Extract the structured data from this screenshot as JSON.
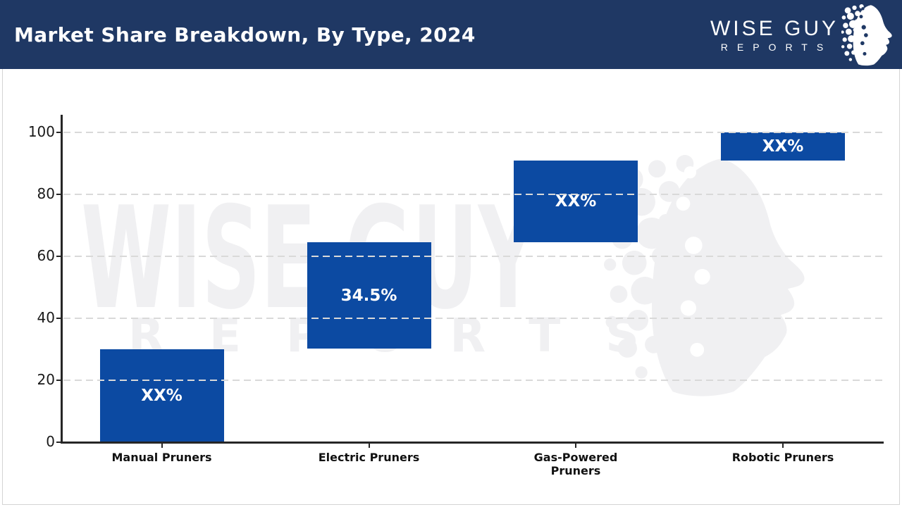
{
  "header": {
    "title": "Market Share Breakdown, By Type, 2024"
  },
  "logo": {
    "name": "WISE GUY",
    "sub": "REPORTS"
  },
  "watermark": {
    "name": "WISE GUY",
    "sub": "REPORTS"
  },
  "colors": {
    "header_bg": "#1f3864",
    "bar_blue": "#0c4aa2",
    "grid": "#d9d9d9",
    "axis": "#262626",
    "watermark": "#f0f0f2",
    "frame": "#d4d4d4"
  },
  "chart_data": {
    "type": "bar",
    "subtype": "floating-waterfall-breakdown",
    "title": "Market Share Breakdown, By Type, 2024",
    "categories": [
      "Manual Pruners",
      "Electric Pruners",
      "Gas-Powered Pruners",
      "Robotic Pruners"
    ],
    "bars": [
      {
        "category_lines": [
          "Manual Pruners"
        ],
        "start": 0,
        "end": 30,
        "label": "XX%"
      },
      {
        "category_lines": [
          "Electric Pruners"
        ],
        "start": 30,
        "end": 64.5,
        "label": "34.5%"
      },
      {
        "category_lines": [
          "Gas-Powered",
          "Pruners"
        ],
        "start": 64.5,
        "end": 90.8,
        "label": "XX%"
      },
      {
        "category_lines": [
          "Robotic Pruners"
        ],
        "start": 90.8,
        "end": 100,
        "label": "XX%"
      }
    ],
    "y_ticks": [
      0,
      20,
      40,
      60,
      80,
      100
    ],
    "ylim": [
      0,
      105.5
    ],
    "xlabel": "",
    "ylabel": "",
    "grid": "horizontal-dashed",
    "legend": null,
    "bar_color": "#0c4aa2",
    "value_label_color": "#ffffff"
  }
}
